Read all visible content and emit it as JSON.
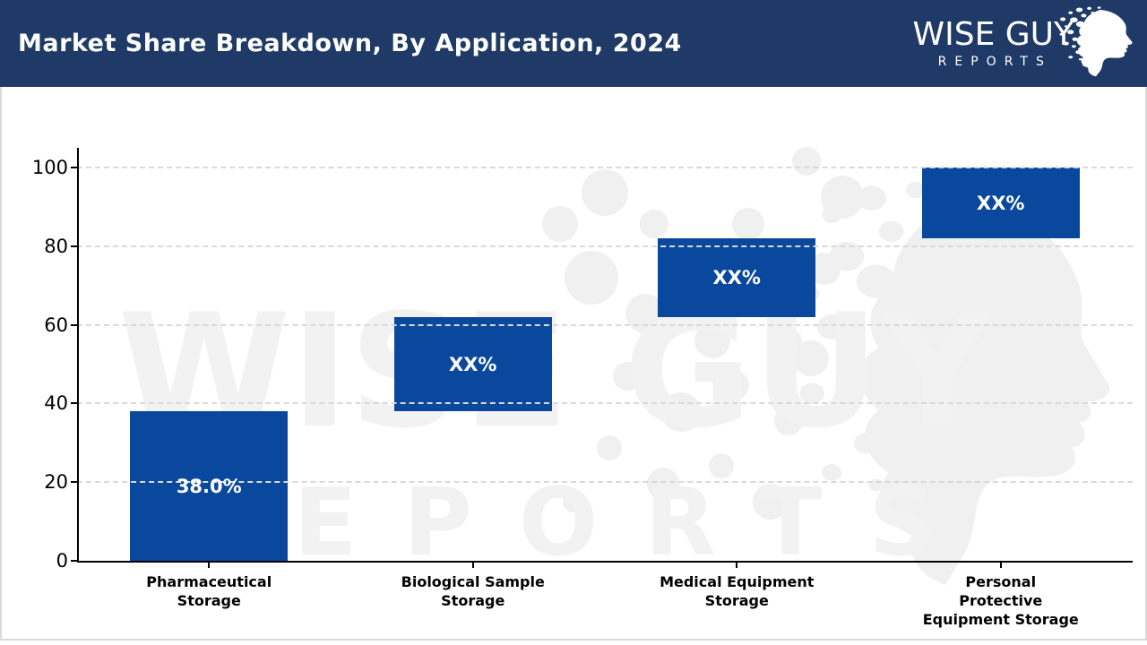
{
  "header": {
    "title": "Market Share Breakdown, By Application, 2024",
    "logo": {
      "line1": "WISE GUY",
      "line2": "REPORTS"
    }
  },
  "watermark": {
    "line1": "WISE GUY",
    "line2": "REPORTS"
  },
  "chart_data": {
    "type": "bar",
    "subtype": "waterfall",
    "title": "Market Share Breakdown, By Application, 2024",
    "categories": [
      "Pharmaceutical\nStorage",
      "Biological Sample\nStorage",
      "Medical Equipment\nStorage",
      "Personal\nProtective\nEquipment Storage"
    ],
    "series": [
      {
        "name": "Market Share (%)",
        "segments": [
          {
            "category": "Pharmaceutical Storage",
            "start": 0,
            "end": 38,
            "label": "38.0%"
          },
          {
            "category": "Biological Sample Storage",
            "start": 38,
            "end": 62,
            "label": "XX%"
          },
          {
            "category": "Medical Equipment Storage",
            "start": 62,
            "end": 82,
            "label": "XX%"
          },
          {
            "category": "Personal Protective Equipment Storage",
            "start": 82,
            "end": 100,
            "label": "XX%"
          }
        ]
      }
    ],
    "yticks": [
      0,
      20,
      40,
      60,
      80,
      100
    ],
    "ylim": [
      0,
      105
    ],
    "xlabel": "",
    "ylabel": "",
    "grid": true,
    "grid_style": "dashed",
    "legend": "none",
    "bar_color": "#0a489d",
    "grid_color": "#d9d9d9",
    "header_color": "#1f3a66",
    "label_color": "#ffffff"
  }
}
